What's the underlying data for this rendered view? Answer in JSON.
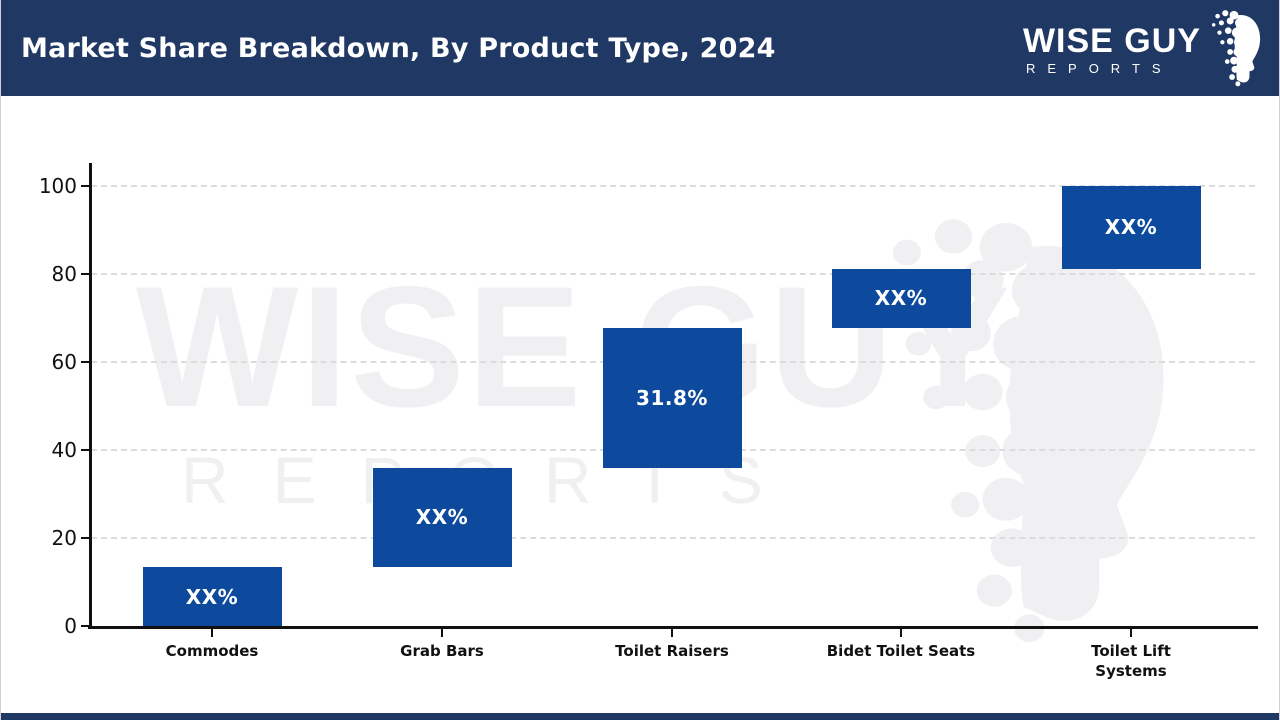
{
  "header": {
    "title": "Market Share Breakdown, By Product Type, 2024",
    "logo": {
      "line1": "WISE GUY",
      "line2": "REPORTS"
    }
  },
  "watermark": {
    "line1": "WISE GUY",
    "line2": "REPORTS"
  },
  "chart_data": {
    "type": "bar",
    "subtype": "waterfall",
    "title": "Market Share Breakdown, By Product Type, 2024",
    "categories": [
      "Commodes",
      "Grab Bars",
      "Toilet Raisers",
      "Bidet Toilet Seats",
      "Toilet Lift\nSystems"
    ],
    "bars": [
      {
        "category": "Commodes",
        "start": 0,
        "end": 13.4,
        "label": "XX%"
      },
      {
        "category": "Grab Bars",
        "start": 13.4,
        "end": 36.0,
        "label": "XX%"
      },
      {
        "category": "Toilet Raisers",
        "start": 36.0,
        "end": 67.8,
        "label": "31.8%"
      },
      {
        "category": "Bidet Toilet Seats",
        "start": 67.8,
        "end": 81.2,
        "label": "XX%"
      },
      {
        "category": "Toilet Lift Systems",
        "start": 81.2,
        "end": 100,
        "label": "XX%"
      }
    ],
    "xlabel": "",
    "ylabel": "",
    "yticks": [
      0,
      20,
      40,
      60,
      80,
      100
    ],
    "ylim": [
      0,
      104.5
    ],
    "grid": "horizontal-dashed",
    "legend": "none",
    "colors": {
      "bar": "#0d4a9e",
      "bar_label": "#ffffff",
      "grid": "#dcdcdc",
      "axis": "#111111",
      "header_bg": "#203864",
      "footer_bg": "#203864",
      "watermark": "#f0f0f3"
    }
  }
}
